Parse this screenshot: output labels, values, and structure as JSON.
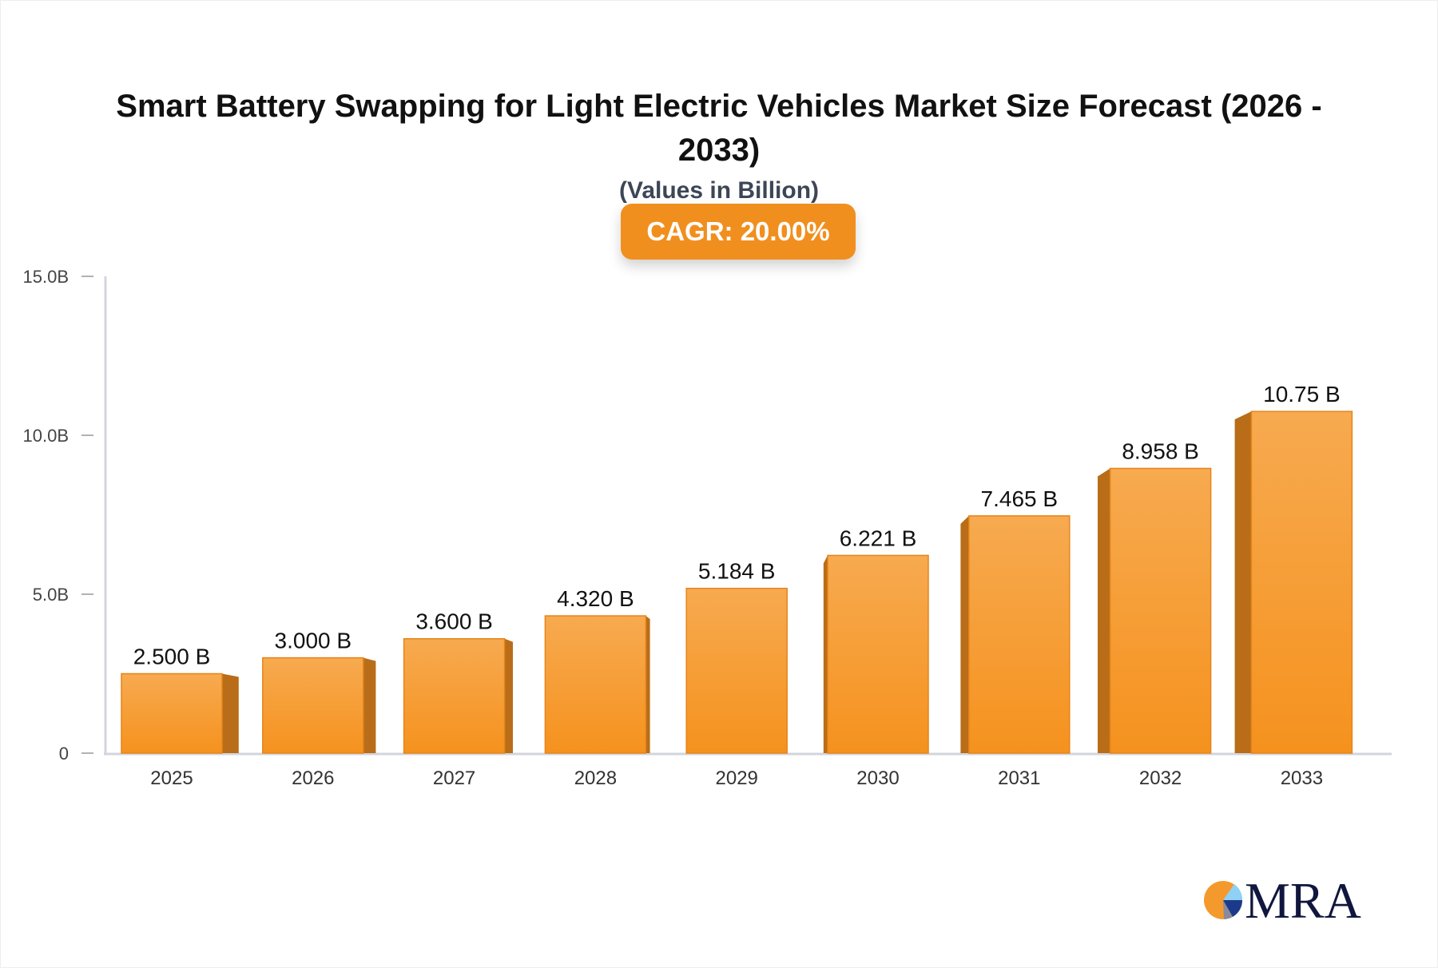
{
  "chart_data": {
    "type": "bar",
    "title": "Smart Battery Swapping for Light Electric Vehicles Market Size Forecast (2026 - 2033)",
    "subtitle": "(Values in Billion)",
    "badge": "CAGR: 20.00%",
    "categories": [
      "2025",
      "2026",
      "2027",
      "2028",
      "2029",
      "2030",
      "2031",
      "2032",
      "2033"
    ],
    "values": [
      2.5,
      3.0,
      3.6,
      4.32,
      5.184,
      6.221,
      7.465,
      8.958,
      10.75
    ],
    "data_labels": [
      "2.500 B",
      "3.000 B",
      "3.600 B",
      "4.320 B",
      "5.184 B",
      "6.221 B",
      "7.465 B",
      "8.958 B",
      "10.75 B"
    ],
    "ylim": [
      0,
      15
    ],
    "yticks": [
      0,
      5,
      10,
      15
    ],
    "ytick_labels": [
      "0",
      "5.0B",
      "10.0B",
      "15.0B"
    ],
    "xlabel": "",
    "ylabel": "",
    "grid": false,
    "colors": {
      "bar_top": "#f7aa50",
      "bar_bottom": "#f5921e",
      "bar_side": "#b96d18",
      "badge": "#f18f1e"
    }
  },
  "logo": {
    "text": "MRA"
  }
}
